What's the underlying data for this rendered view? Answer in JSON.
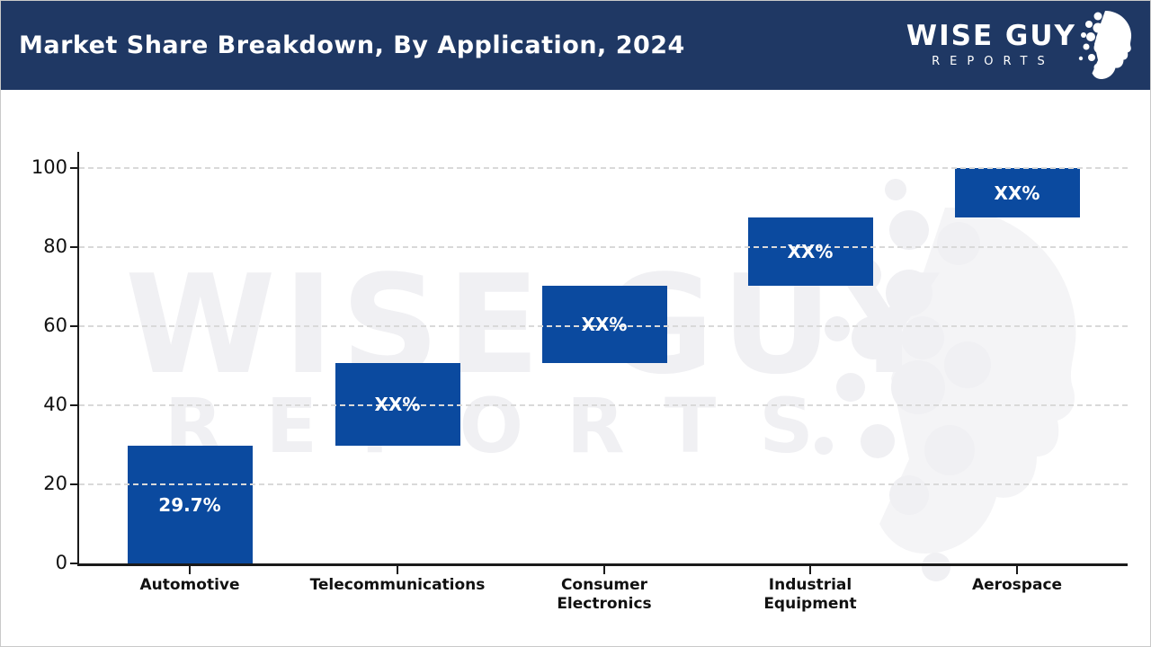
{
  "page": {
    "background": "#ffffff",
    "border_color": "#c9c9c9"
  },
  "header": {
    "bg_color": "#1f3864",
    "title": "Market Share Breakdown, By Application, 2024",
    "logo": {
      "name": "WISE GUY",
      "sub": "REPORTS"
    }
  },
  "watermark": {
    "line1": "WISE GUY",
    "line2": "REPORTS"
  },
  "chart_data": {
    "type": "bar",
    "subtype": "waterfall-floating-bars",
    "title": "Market Share Breakdown, By Application, 2024",
    "categories": [
      "Automotive",
      "Telecommunications",
      "Consumer\nElectronics",
      "Industrial\nEquipment",
      "Aerospace"
    ],
    "segments": [
      {
        "category": "Automotive",
        "start": 0,
        "end": 29.7,
        "label": "29.7%"
      },
      {
        "category": "Telecommunications",
        "start": 29.7,
        "end": 50.7,
        "label": "XX%"
      },
      {
        "category": "Consumer Electronics",
        "start": 50.7,
        "end": 70.3,
        "label": "XX%"
      },
      {
        "category": "Industrial Equipment",
        "start": 70.3,
        "end": 87.5,
        "label": "XX%"
      },
      {
        "category": "Aerospace",
        "start": 87.5,
        "end": 100,
        "label": "XX%"
      }
    ],
    "bar_color": "#0b4a9f",
    "bar_label_color": "#ffffff",
    "axis_color": "#1a1a1a",
    "ylim": [
      0,
      100
    ],
    "yticks": [
      0,
      20,
      40,
      60,
      80,
      100
    ],
    "grid": {
      "axis": "y",
      "style": "dashed",
      "color": "#d9d9d9"
    },
    "xlabel": "",
    "ylabel": "",
    "legend": "none"
  }
}
